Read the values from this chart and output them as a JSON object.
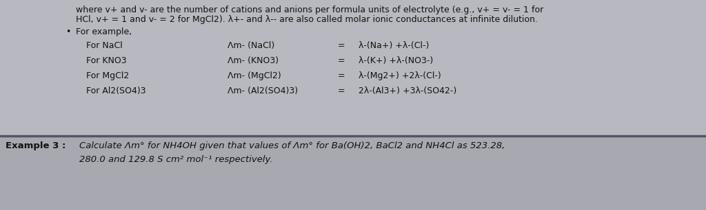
{
  "bg_color": "#b8b8c0",
  "bottom_bg_color": "#b8b8c0",
  "separator_color": "#555566",
  "text_color": "#111111",
  "top_line1": "where v+ and v- are the number of cations and anions per formula units of electrolyte (e.g., v+ = v- = 1 for",
  "top_line2": "HCl, v+ = 1 and v- = 2 for MgCl2). λ+- and λ-- are also called molar ionic conductances at infinite dilution.",
  "bullet": "For example,",
  "rows": [
    {
      "label": "For NaCl",
      "middle": "Λm- (NaCl)",
      "right": "λ-(Na+) +λ-(Cl-)"
    },
    {
      "label": "For KNO3",
      "middle": "Λm- (KNO3)",
      "right": "λ-(K+) +λ-(NO3-)"
    },
    {
      "label": "For MgCl2",
      "middle": "Λm- (MgCl2)",
      "right": "λ-(Mg2+) +2λ-(Cl-)"
    },
    {
      "label": "For Al2(SO4)3",
      "middle": "Λm- (Al2(SO4)3)",
      "right": "2λ-(Al3+) +3λ-(SO42-)"
    }
  ],
  "example_label": "Example 3 :",
  "example_line1": "Calculate Λm° for NH4OH given that values of Λm° for Ba(OH)2, BaCl2 and NH4Cl as 523.28,",
  "example_line2": "280.0 and 129.8 S cm² mol⁻¹ respectively."
}
